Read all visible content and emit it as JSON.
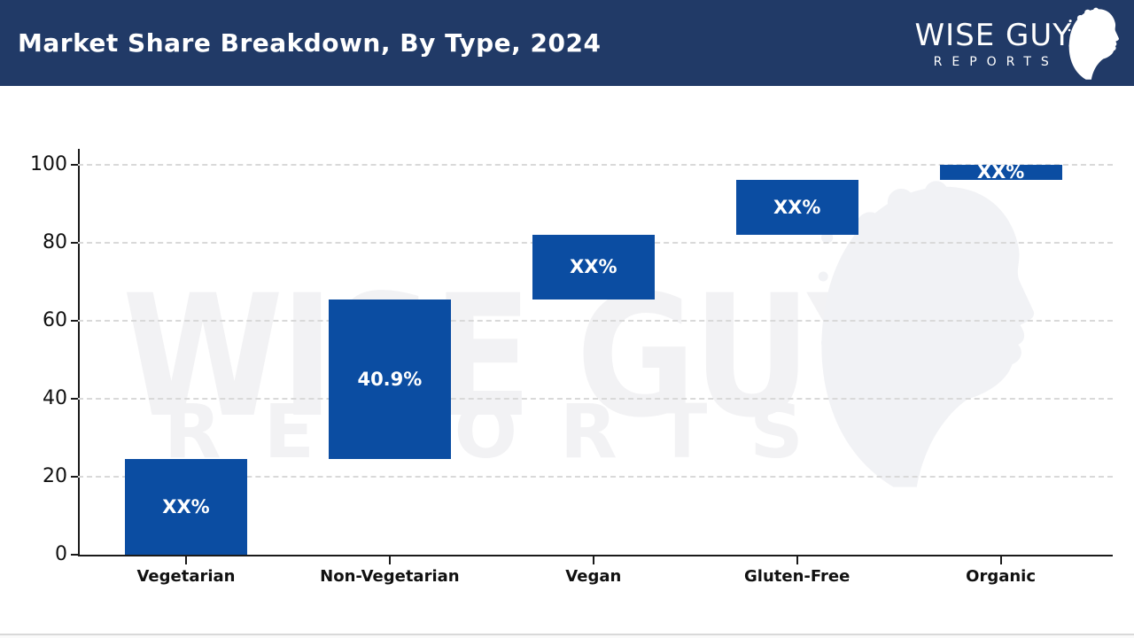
{
  "header": {
    "title": "Market Share Breakdown, By Type, 2024",
    "logo_line1": "WISE GUY",
    "logo_line2": "REPORTS",
    "background_color": "#213a67"
  },
  "watermark": {
    "line1": "WISE GUY",
    "line2": "REPORTS"
  },
  "chart_data": {
    "type": "bar",
    "subtype": "waterfall-floating-bars",
    "title": "Market Share Breakdown, By Type, 2024",
    "categories": [
      "Vegetarian",
      "Non-Vegetarian",
      "Vegan",
      "Gluten-Free",
      "Organic"
    ],
    "segments": [
      {
        "category": "Vegetarian",
        "start": 0,
        "end": 24.5,
        "label": "XX%"
      },
      {
        "category": "Non-Vegetarian",
        "start": 24.5,
        "end": 65.4,
        "label": "40.9%"
      },
      {
        "category": "Vegan",
        "start": 65.4,
        "end": 82.0,
        "label": "XX%"
      },
      {
        "category": "Gluten-Free",
        "start": 82.0,
        "end": 96.1,
        "label": "XX%"
      },
      {
        "category": "Organic",
        "start": 96.1,
        "end": 100.0,
        "label": "XX%"
      }
    ],
    "y_ticks": [
      0,
      20,
      40,
      60,
      80,
      100
    ],
    "ylim": [
      0,
      104
    ],
    "xlabel": "",
    "ylabel": "",
    "legend": "none",
    "grid": "horizontal-dashed",
    "bar_color": "#0b4da2",
    "bar_label_color": "#ffffff",
    "gridline_color": "#d9d9d9",
    "axis_color": "#1a1a1a"
  }
}
